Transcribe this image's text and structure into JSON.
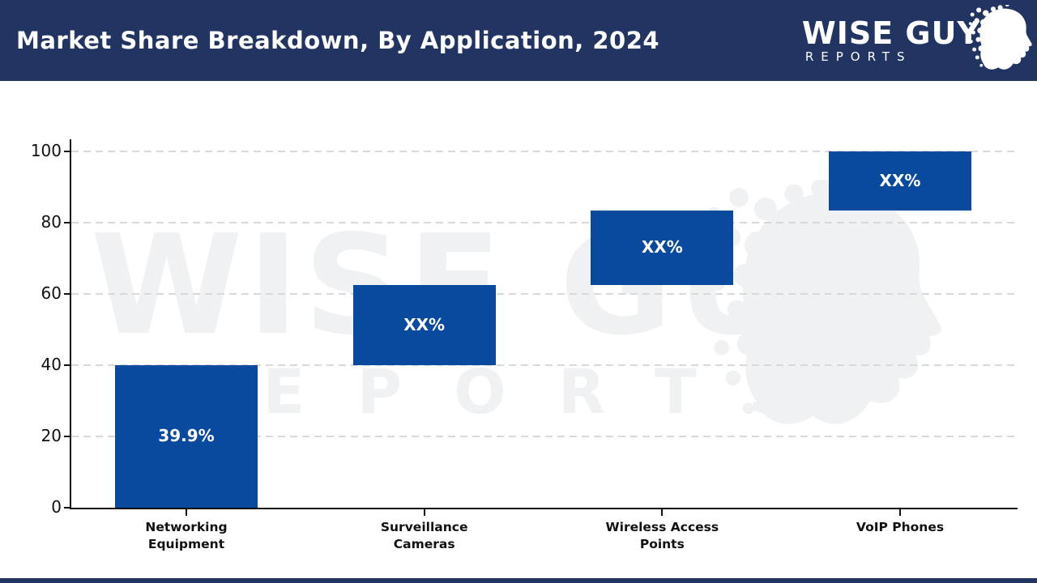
{
  "header": {
    "title": "Market Share Breakdown, By Application, 2024"
  },
  "logo": {
    "wordmark": "WISE GUY",
    "subtext": "REPORTS"
  },
  "watermark": {
    "line1": "WISE GUY",
    "line2": "REPORTS"
  },
  "chart_data": {
    "type": "bar",
    "subtype": "waterfall-floating-bars",
    "title": "Market Share Breakdown, By Application, 2024",
    "categories": [
      "Networking Equipment",
      "Surveillance Cameras",
      "Wireless Access Points",
      "VoIP Phones"
    ],
    "segments": [
      {
        "category": "Networking Equipment",
        "start": 0,
        "end": 39.9,
        "label": "39.9%"
      },
      {
        "category": "Surveillance Cameras",
        "start": 39.9,
        "end": 62.6,
        "label": "XX%"
      },
      {
        "category": "Wireless Access Points",
        "start": 62.6,
        "end": 83.4,
        "label": "XX%"
      },
      {
        "category": "VoIP Phones",
        "start": 83.4,
        "end": 100,
        "label": "XX%"
      }
    ],
    "y_ticks": [
      0,
      20,
      40,
      60,
      80,
      100
    ],
    "ylim": [
      0,
      103.5
    ],
    "xlabel": "",
    "ylabel": "",
    "grid": "horizontal-dashed",
    "legend": "none",
    "bar_color": "#0a4a9e",
    "bar_label_color": "#ffffff"
  },
  "colors": {
    "header_bg": "#213462",
    "footer_bg": "#213462",
    "bar": "#0a4a9e",
    "grid_line": "#d9d9d9",
    "axis": "#111111",
    "watermark": "#f0f1f3",
    "title_text": "#ffffff"
  }
}
